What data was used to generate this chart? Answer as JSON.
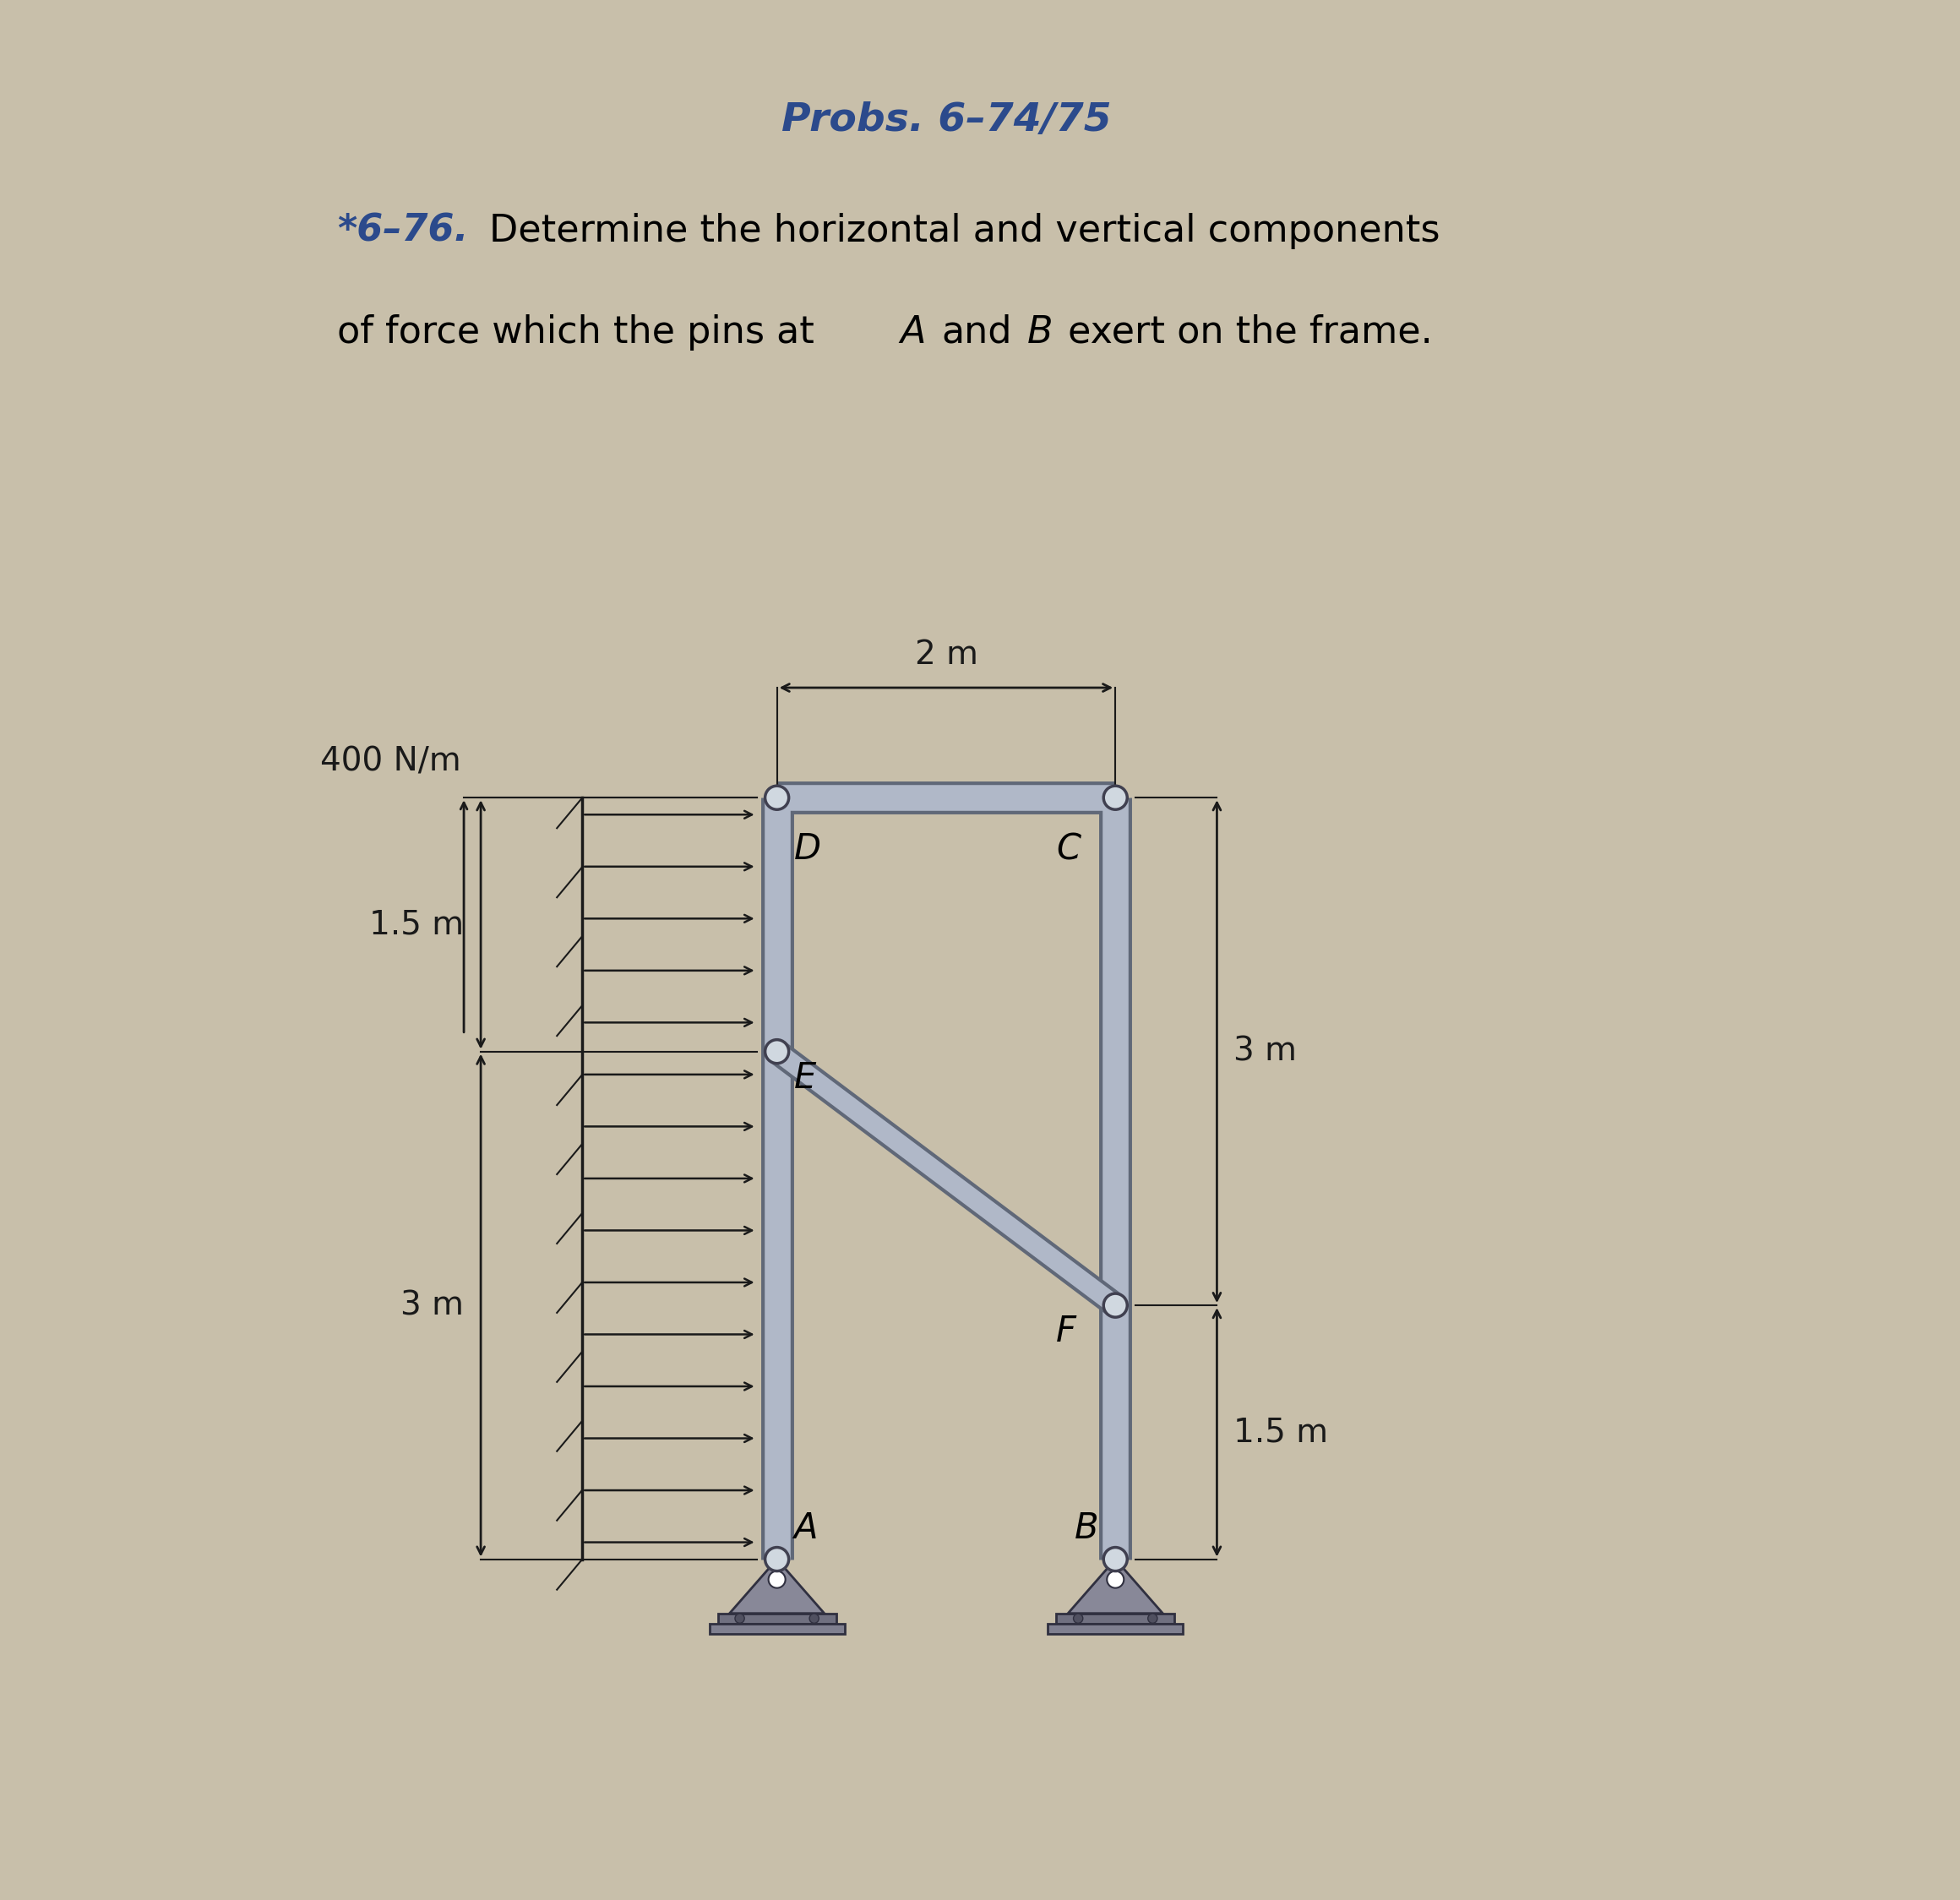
{
  "bg_color": "#c8bfaa",
  "title_probs": "Probs. 6–74/75",
  "title_probs_color": "#2b4a8c",
  "frame_color": "#b0b8c8",
  "frame_edge_color": "#606878",
  "frame_lw": 22,
  "diag_lw": 16,
  "pin_color": "#d0d8e0",
  "pin_edge": "#404050",
  "dim_color": "#1a1a1a",
  "arrow_color": "#1a1a1a",
  "label_font_size": 30,
  "dim_font_size": 28,
  "text_font_size": 32,
  "title_font_size": 34,
  "D": [
    0.0,
    4.5
  ],
  "C": [
    2.0,
    4.5
  ],
  "E": [
    0.0,
    3.0
  ],
  "F": [
    2.0,
    1.5
  ],
  "A": [
    0.0,
    0.0
  ],
  "B": [
    2.0,
    0.0
  ],
  "xlim": [
    -2.8,
    5.2
  ],
  "ylim": [
    -2.0,
    9.2
  ]
}
